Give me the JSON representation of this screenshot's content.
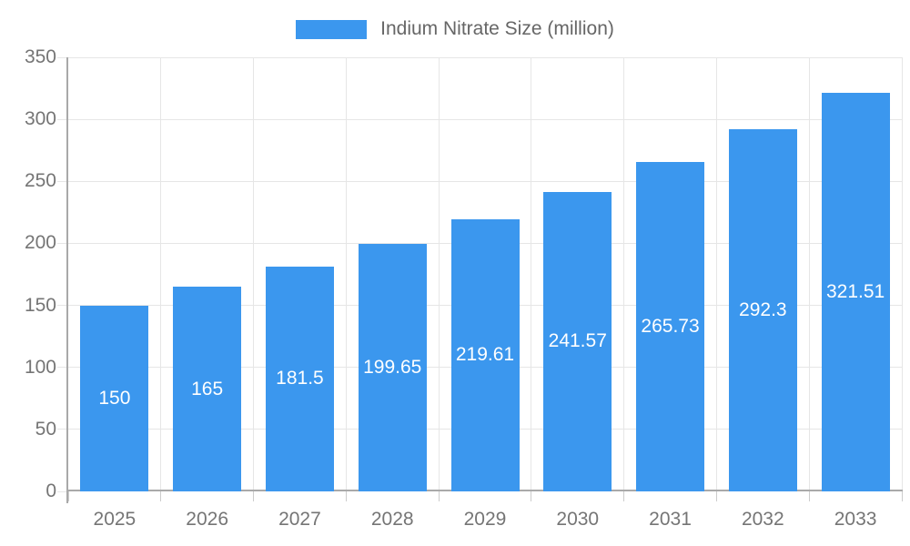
{
  "legend": {
    "label": "Indium Nitrate Size (million)"
  },
  "colors": {
    "bar": "#3b97ee",
    "grid": "#e6e6e6",
    "axis": "#a9a9a9",
    "xtick": "#cccccc",
    "axis_text": "#757575",
    "legend_text": "#666666",
    "bar_label_text": "#ffffff",
    "background": "#ffffff"
  },
  "chart_data": {
    "type": "bar",
    "title": "",
    "xlabel": "",
    "ylabel": "",
    "categories": [
      "2025",
      "2026",
      "2027",
      "2028",
      "2029",
      "2030",
      "2031",
      "2032",
      "2033"
    ],
    "series": [
      {
        "name": "Indium Nitrate Size (million)",
        "values": [
          150,
          165,
          181.5,
          199.65,
          219.61,
          241.57,
          265.73,
          292.3,
          321.51
        ],
        "labels": [
          "150",
          "165",
          "181.5",
          "199.65",
          "219.61",
          "241.57",
          "265.73",
          "292.3",
          "321.51"
        ],
        "color": "#3b97ee"
      }
    ],
    "ylim": [
      0,
      350
    ],
    "yticks": [
      0,
      50,
      100,
      150,
      200,
      250,
      300,
      350
    ],
    "grid": true,
    "legend_position": "top-center",
    "value_label_position": "inside-center"
  }
}
